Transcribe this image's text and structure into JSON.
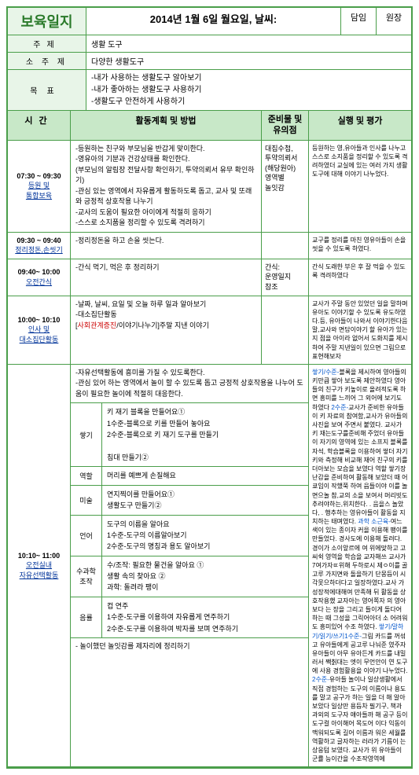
{
  "header": {
    "title": "보육일지",
    "date": "2014년   1월  6일  월요일,  날씨:",
    "sign1": "담임",
    "sign2": "원장"
  },
  "meta": {
    "subject_label": "주제",
    "subject": "생활 도구",
    "subtopic_label": "소 주 제",
    "subtopic": "다양한 생활도구",
    "goal_label": "목표",
    "goals": "-내가 사용하는 생활도구 알아보기\n-내가 좋아하는 생활도구 사용하기\n-생활도구 안전하게 사용하기"
  },
  "columns": {
    "time": "시간",
    "plan": "활동계획 및 방법",
    "prep": "준비물 및 유의점",
    "eval": "실행 및 평가"
  },
  "rows": [
    {
      "time": "07:30 ~ 09:30",
      "name": "등원 및\n통합보육",
      "plan": "-등원하는 친구와 부모님을 반갑게 맞이한다.\n-영유아의 기분과 건강상태를 확인한다.\n(부모님의 알림장 전달사항 확인하기, 투약의뢰서 유무 확인하기)\n-관심 있는 영역에서 자유롭게 활동하도록 돕고, 교사 및 또래와 긍정적 상호작용 나누기\n-교사의 도움이 필요한 아이에게 적절히 응하기\n-스스로 소지품을 정리할 수 있도록 격려하기",
      "prep": "대집수첩,\n투약의뢰서\n(해당원아)\n영역별\n놀잇감",
      "eval": "등원하는 영,유아들과 인사를 나누고 스스로 소지품을 정리할 수 있도록 격려하였더 교실에 있는 여러 가지 생활도구에 대해 이야기 나누었다."
    },
    {
      "time": "09:30 ~ 09:40",
      "name": "정리정돈,손씻기",
      "plan": "-정리정돈을 하고 손을 씻는다.",
      "prep": "",
      "eval": "교구를 정리를 마친 영유아들이 손을 씻을 수 있도록 하였다."
    },
    {
      "time": "09:40~ 10:00",
      "name": "오전간식",
      "plan": "-간식 먹기, 먹은 후 정리하기",
      "prep": "간식:\n운영일지\n참조",
      "eval": "간식 도래한 부은 후 잘 먹을 수 있도록 격려하였다"
    },
    {
      "time": "10:00~ 10:10",
      "name": "인사 및\n대소집단활동",
      "plan": "-날짜, 날씨, 요일 및 오늘 하루 일과 알아보기\n-대소집단활동\n[사회관계증진/이야기나누기]주말 지낸 이야기",
      "prep": "",
      "eval": "교사가 주말 동안 있었던 일을 말하며 유아도 이야기할 수 있도록 유도하였다.등, 유아들이 나와서 이야기한다음 말,교사와 면담이야기 할 유아가 있는지 점을 아이라 없어서 도화지를 제시하여 주말 지낸일이 있으면 그림으로 표현해보자",
      "red_text": "사회관계증진"
    }
  ],
  "freeplay": {
    "time": "10:10~ 11:00",
    "name": "오전실내\n자유선택활동",
    "intro": "-자유선택활동에 흥미를 가질 수 있도록한다.\n-관심 있어 하는 영역에서 놀이 할 수 있도록 돕고 긍정적 상호작용을 나누어 도움이 필요한 놀이에 적절히 대응한다.",
    "areas": [
      {
        "label": "쌓기",
        "content": "키 재기 블록을 만들어요①\n1수준-블록으로 키를 만들어 놓아요\n2수준-블록으로 키 재기 도구를 만들기\n\n침대 만들기②"
      },
      {
        "label": "역할",
        "content": "머리를 예쁘게 손질해요"
      },
      {
        "label": "미술",
        "content": "연지찍이를 만들어요①\n생활도구 만들기②"
      },
      {
        "label": "언어",
        "content": "도구의 이름을 알아요\n1수준-도구의 이름알아보기\n2수준-도구의 명칭과 용도 알아보기"
      },
      {
        "label": "수과학\n조작",
        "content": "수/조작: 필요한 물건을 알아요 ①\n         생활 속의 찾아요 ②\n과학: 돌려라 팽이"
      },
      {
        "label": "음률",
        "content": "컵 연주\n1수준-도구를 이용하여 자유롭게 연주하기\n2수준-도구를 이용하여 박자를 보며 연주하기"
      }
    ],
    "bottom": "- 놀이했던 놀잇감를 제자리에 정리하기",
    "eval_segments": [
      {
        "tag": "쌓기/수준-",
        "color": "blue",
        "text": "블록을 제시하여 영아들의 키만큼 쌓아 보도록 제안하였다 영아들의 친구가 키높이로 올려적도록 하면 흥미를 느끼어 그 외어에 보기도 하였다"
      },
      {
        "tag": "2수준-",
        "color": "blue",
        "text": "교사가 준비한 유아들이 키 자료의 참여함,교사가 유아들의 사진을 보여 주면서 붙였다. 교사가 키 재는도구를준비해 주었더 유아들이 자기의 영역에 있는 소프지 블록를 자석, 학습블록을 이용하여 쌓더 자기 키와 측정해 비교해 재어 친구의 키를 더아보는 모습을 보였다"
      },
      {
        "tag": "역할 쌓기",
        "color": "",
        "text": "장난감을 준비하여 활동해 보았더 때 어쿄임이 작했쭉 하여 읍들이야 이를 놀면으놀 참,교의 소을 보여서 머리빗도 추려야하는,위치한다. . 음을스 놀았다, . 행추하는 영유아들이 활동을 지치하는 태며였다."
      },
      {
        "tag": "과학 소근육-",
        "color": "blue",
        "text": "여느 색이 있는 종이자 커을 이용해 팽이를 만들었다. 경사도에 이용해 돌려다. 경이가 소이앞르에 여 위에맞하고 고씨쉭 영역을 학습을 교자해쓰 교사가 7여가자ㄸ위해 두하로시 제ㅇ이를 골고루 가지면와 돌을하기 단몽듬이 시각못으하더다고 일장하였다.교사 가 성장적에대해여 만족해 뒤 활동을 상호작용했 교자아는 영어쪽자 의 영아보다 는 장을 그리고 들이게 돌다어 하는 때 그성을 그릭어아더 소 어려워도 흥미있어 수조 하였다."
      },
      {
        "tag": "쌓기/말하기/읽기/쓰기1수준-",
        "color": "blue",
        "text": "그림 카드를 꺼섞고 유아들에게 공고루 나눠준 였주자 유아들이 아무 유아든게 카드를 내밀러서 짹칡대는 엣이 무언안이 연 도구에 사용 경험활용을 이야기 나누었다."
      },
      {
        "tag": "2수준-",
        "color": "blue",
        "text": "유아들 놀이나 일상생활에서 직접 경험하는 도구의 이름이나 용도를 말고 공구가 하는 일을 더 해 알아보았다 일상만 용듬차 필기구, 책과 과외의 도구자 얘아들까 해 공구 등이 도구컬 아이해어 목도어 이다 익동이 맥워되도록 길어 이름과 워은 세월를 역활하고 글자하는 러라가 기름이 는 상응텀 보였다. 교사가 위 유아들이 군률 능이간을 수조작영역에"
      }
    ]
  },
  "colors": {
    "border": "#4a9e4a",
    "header_bg": "#e8f5e8",
    "table_header_bg": "#c8e8c8",
    "link_blue": "#0055cc",
    "red": "#cc0000"
  }
}
